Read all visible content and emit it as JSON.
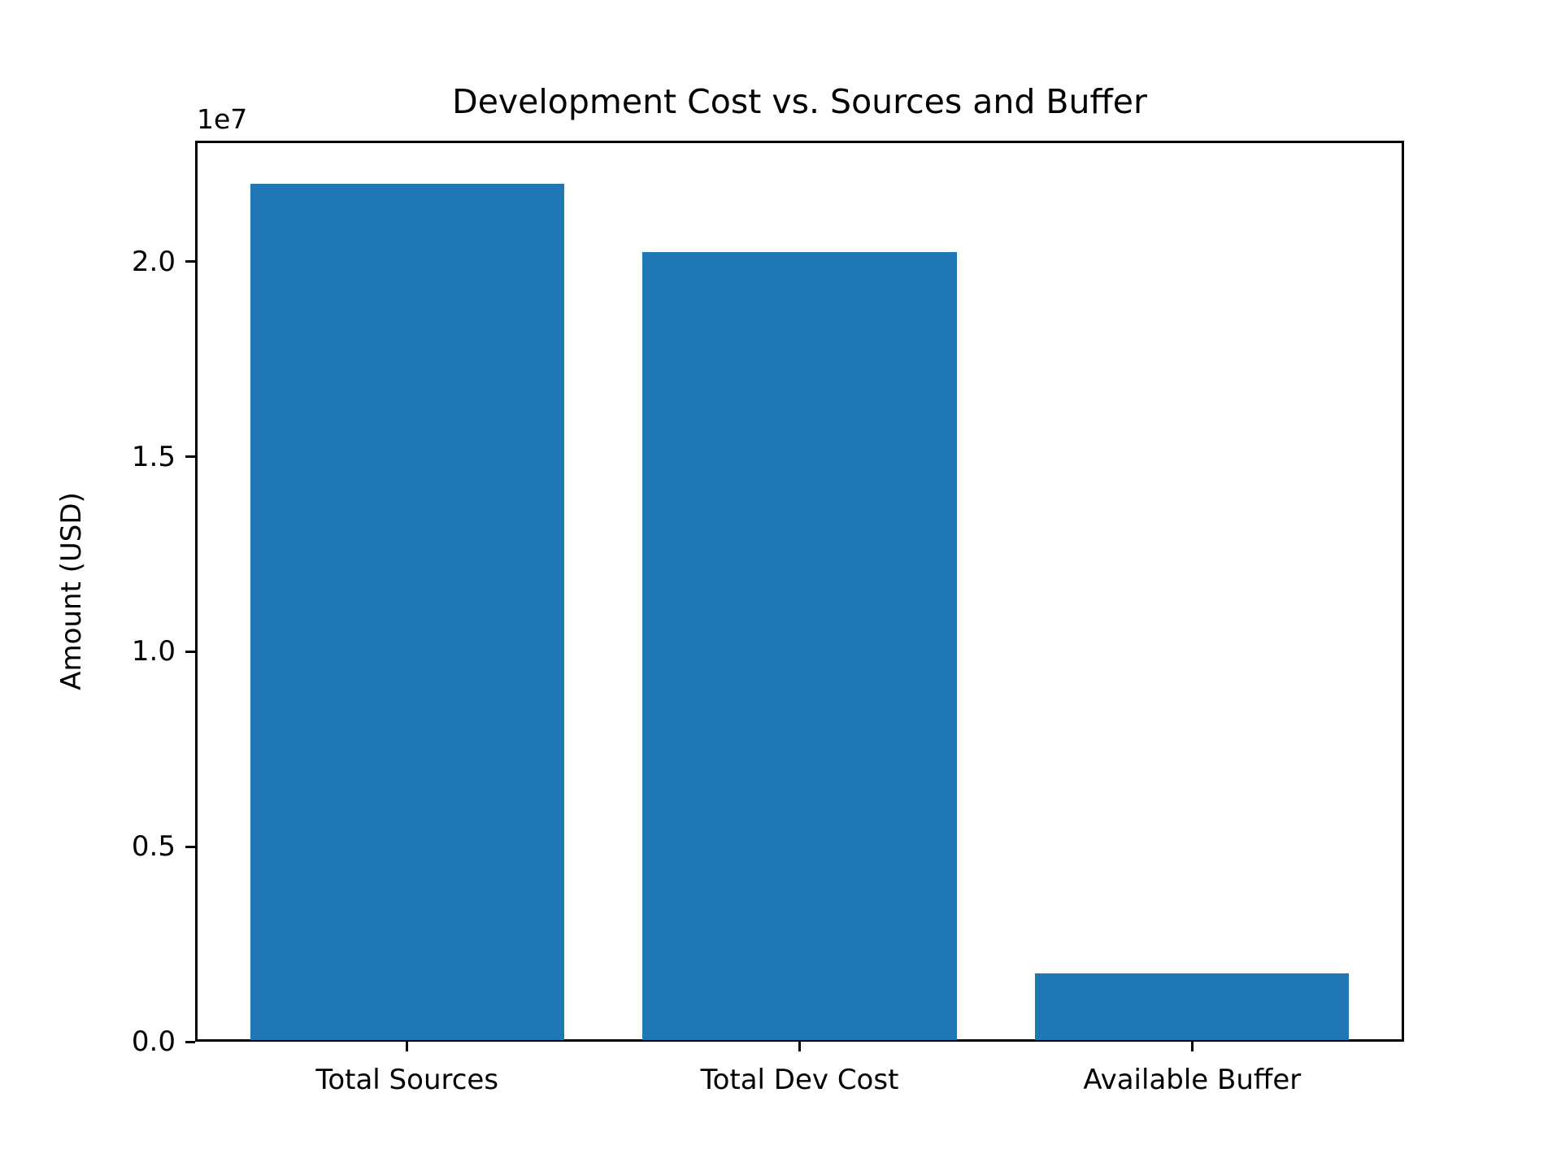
{
  "figure": {
    "title": "Development Cost vs. Sources and Buffer",
    "ylabel": "Amount (USD)",
    "offset_text": "1e7"
  },
  "chart_data": {
    "type": "bar",
    "categories": [
      "Total Sources",
      "Total Dev Cost",
      "Available Buffer"
    ],
    "values": [
      22000000,
      20250000,
      1750000
    ],
    "title": "Development Cost vs. Sources and Buffer",
    "xlabel": "",
    "ylabel": "Amount (USD)",
    "ylim": [
      0,
      23100000
    ],
    "xlim": [
      -0.54,
      2.54
    ],
    "bar_width": 0.8,
    "bar_color": "#1f77b4",
    "yticks": {
      "values": [
        0,
        5000000,
        10000000,
        15000000,
        20000000
      ],
      "labels": [
        "0.0",
        "0.5",
        "1.0",
        "1.5",
        "2.0"
      ]
    },
    "y_offset_text": "1e7",
    "grid": false,
    "legend_position": "none"
  }
}
